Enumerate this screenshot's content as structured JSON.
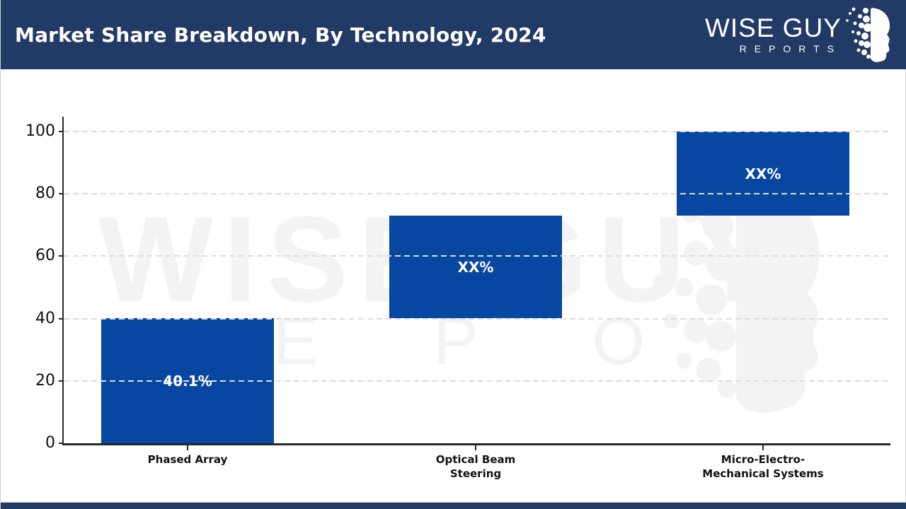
{
  "header": {
    "title": "Market Share Breakdown, By Technology, 2024",
    "bg_color": "#223A66",
    "logo": {
      "line1": "WISE GUY",
      "line2": "REPORTS"
    }
  },
  "watermark": {
    "line1": "WISE GUY",
    "line2": "R E P O R T S"
  },
  "footer": {
    "bg_color": "#223A66"
  },
  "chart_data": {
    "type": "bar",
    "subtype": "waterfall",
    "title": "Market Share Breakdown, By Technology, 2024",
    "categories": [
      [
        "Phased Array"
      ],
      [
        "Optical Beam",
        "Steering"
      ],
      [
        "Micro-Electro-",
        "Mechanical Systems"
      ]
    ],
    "segments": [
      {
        "category": "Phased Array",
        "start": 0,
        "end": 40.1,
        "value_label": "40.1%"
      },
      {
        "category": "Optical Beam Steering",
        "start": 40.1,
        "end": 73,
        "value_label": "XX%"
      },
      {
        "category": "Micro-Electro-Mechanical Systems",
        "start": 73,
        "end": 100,
        "value_label": "XX%"
      }
    ],
    "yticks": [
      0,
      20,
      40,
      60,
      80,
      100
    ],
    "ylim": [
      0,
      104.6
    ],
    "grid": "horizontal-dashed",
    "bar_color": "#0847A1",
    "bar_value_label_color": "#ffffff",
    "legend": "none"
  }
}
